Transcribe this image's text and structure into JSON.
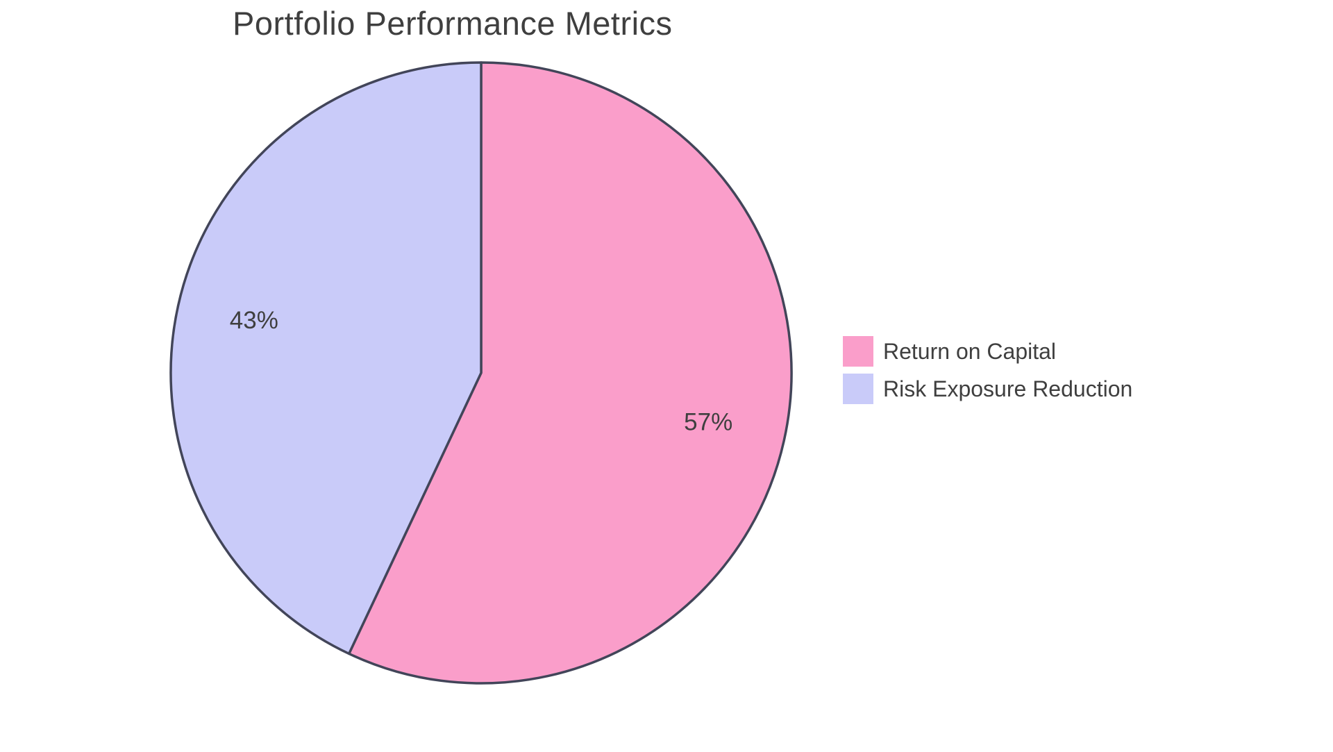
{
  "title": "Portfolio Performance Metrics",
  "chart_data": {
    "type": "pie",
    "title": "Portfolio Performance Metrics",
    "slices": [
      {
        "label": "Return on Capital",
        "value": 57,
        "pct_label": "57%",
        "color": "#FA9ECA"
      },
      {
        "label": "Risk Exposure Reduction",
        "value": 43,
        "pct_label": "43%",
        "color": "#C9CBF9"
      }
    ],
    "start_angle": "top",
    "direction": "clockwise",
    "stroke_color": "#424559",
    "stroke_width": 3.5,
    "label_color": "#3F3F3F",
    "legend_position": "right",
    "legend_entries": [
      "Return on Capital",
      "Risk Exposure Reduction"
    ]
  }
}
